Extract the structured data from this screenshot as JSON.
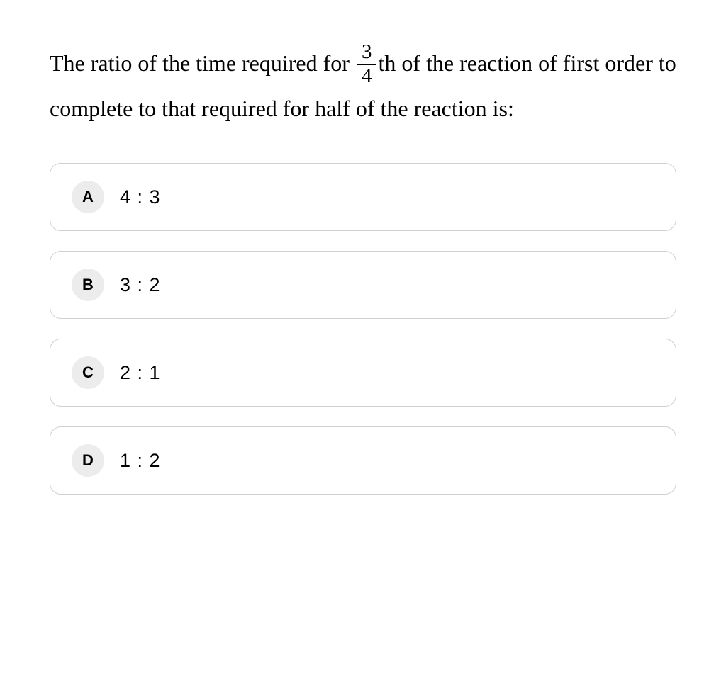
{
  "question": {
    "text_part1": "The ratio of the time required for ",
    "fraction_num": "3",
    "fraction_den": "4",
    "text_part2": "th of the reaction of first order to complete to that required for half of the reaction is:"
  },
  "options": [
    {
      "letter": "A",
      "text": "4 : 3"
    },
    {
      "letter": "B",
      "text": "3 : 2"
    },
    {
      "letter": "C",
      "text": "2 : 1"
    },
    {
      "letter": "D",
      "text": "1 : 2"
    }
  ],
  "styling": {
    "background_color": "#ffffff",
    "text_color": "#000000",
    "option_border_color": "#d0d0d0",
    "option_border_radius": 16,
    "option_letter_bg": "#ececec",
    "question_fontsize": 32,
    "option_text_fontsize": 27,
    "option_letter_fontsize": 22
  }
}
